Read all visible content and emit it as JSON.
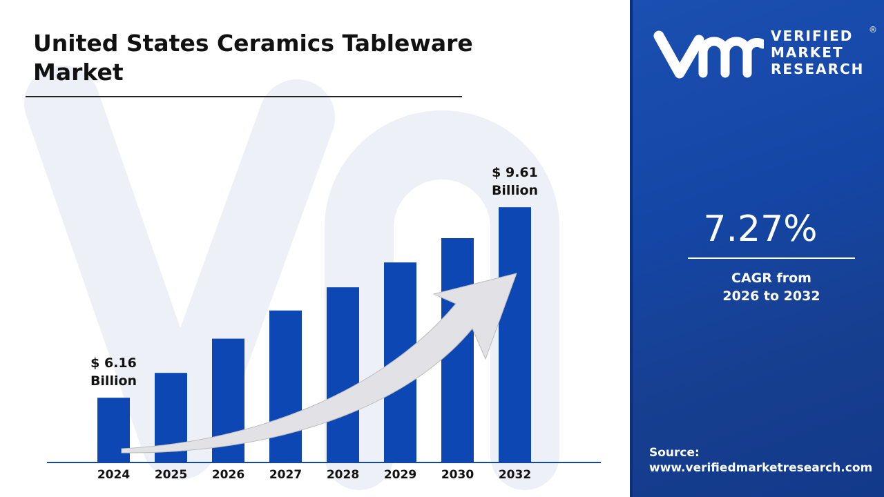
{
  "header": {
    "title": "United States Ceramics Tableware Market"
  },
  "brand": {
    "logo_text": [
      "VERIFIED",
      "MARKET",
      "RESEARCH"
    ],
    "registered": "®",
    "color": "#1446a6"
  },
  "sidebar": {
    "cagr_value": "7.27%",
    "cagr_label_1": "CAGR from",
    "cagr_label_2": "2026 to 2032",
    "source_label": "Source:",
    "source_url": "www.verifiedmarketresearch.com"
  },
  "chart_data": {
    "type": "bar",
    "title": "United States Ceramics Tableware Market",
    "categories": [
      "2024",
      "2025",
      "2026",
      "2027",
      "2028",
      "2029",
      "2030",
      "2032"
    ],
    "values": [
      6.16,
      6.61,
      7.23,
      7.74,
      8.16,
      8.61,
      9.05,
      9.61
    ],
    "unit": "Billion",
    "data_labels": [
      {
        "category": "2024",
        "line1": "$ 6.16",
        "line2": "Billion"
      },
      {
        "category": "2032",
        "line1": "$ 9.61",
        "line2": "Billion"
      }
    ],
    "bar_color": "#0d47b3",
    "grid": false,
    "ylim": [
      5,
      10
    ],
    "trend_arrow": true
  }
}
